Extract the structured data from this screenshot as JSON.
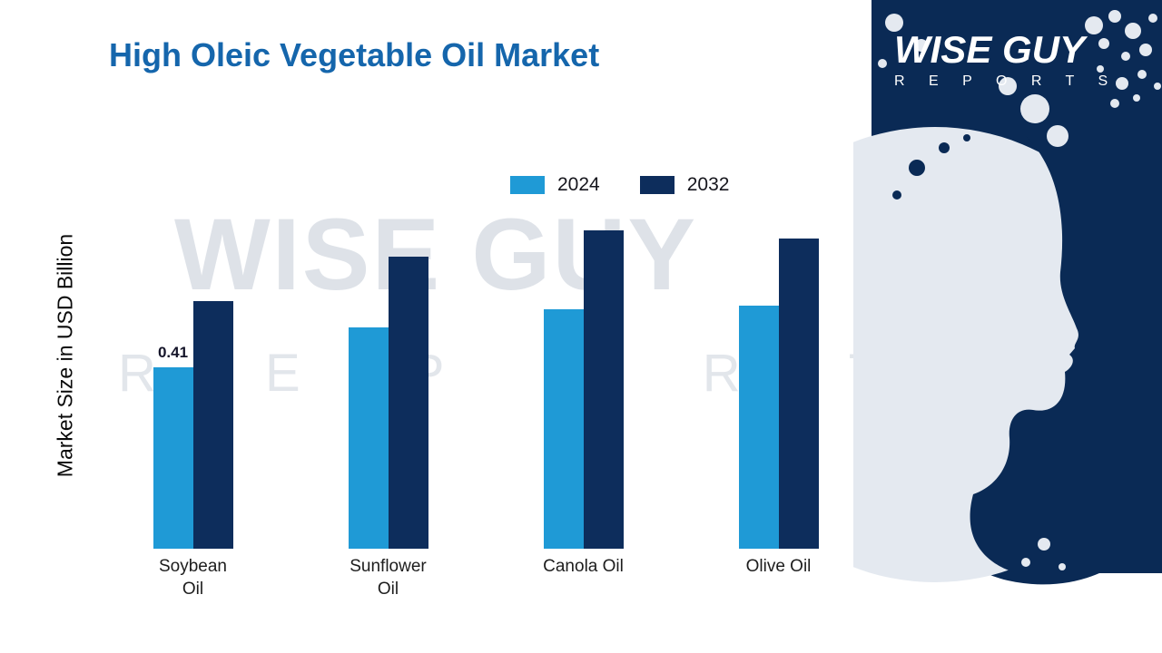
{
  "header": {
    "title": "High Oleic Vegetable Oil Market"
  },
  "logo": {
    "name": "WISE GUY",
    "tagline": "R E P O R T S"
  },
  "watermark": {
    "line1": "WISE GUY",
    "line2": "R E P O R T S"
  },
  "chart_data": {
    "type": "bar",
    "title": "High Oleic Vegetable Oil Market",
    "ylabel": "Market Size in USD Billion",
    "xlabel": "",
    "unit": "USD Billion",
    "categories": [
      "Soybean Oil",
      "Sunflower Oil",
      "Canola Oil",
      "Olive Oil"
    ],
    "category_label_lines": [
      [
        "Soybean",
        "Oil"
      ],
      [
        "Sunflower",
        "Oil"
      ],
      [
        "Canola Oil"
      ],
      [
        "Olive Oil"
      ]
    ],
    "series": [
      {
        "name": "2024",
        "color": "#1f9ad6",
        "values": [
          0.41,
          0.5,
          0.54,
          0.55
        ]
      },
      {
        "name": "2032",
        "color": "#0d2d5c",
        "values": [
          0.56,
          0.66,
          0.72,
          0.7
        ]
      }
    ],
    "data_labels": [
      {
        "series": "2024",
        "category": "Soybean Oil",
        "value": "0.41"
      }
    ],
    "legend_position": "top",
    "grid": false,
    "ylim": [
      0,
      0.8
    ]
  },
  "colors": {
    "title": "#1566ac",
    "bar_2024": "#1f9ad6",
    "bar_2032": "#0d2d5c",
    "panel_navy": "#0a2a55",
    "panel_circle": "#e4e9f0",
    "watermark": "#c9d0da"
  }
}
